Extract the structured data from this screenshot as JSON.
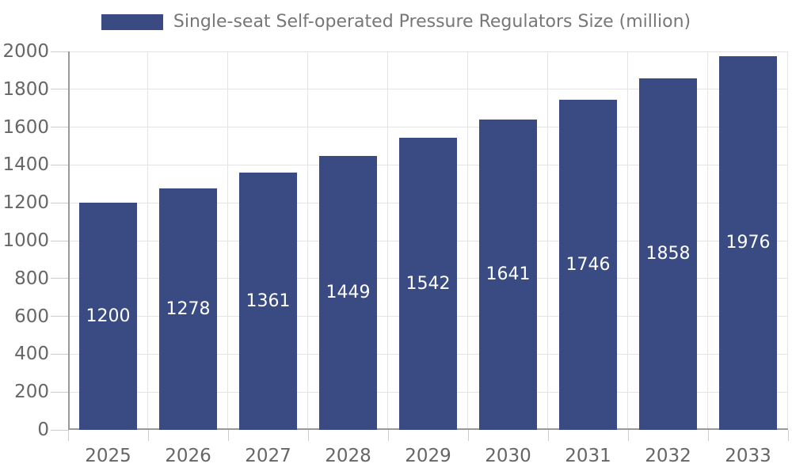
{
  "legend": {
    "label": "Single-seat Self-operated Pressure Regulators Size (million)"
  },
  "chart_data": {
    "type": "bar",
    "title": "Single-seat Self-operated Pressure Regulators Size (million)",
    "categories": [
      "2025",
      "2026",
      "2027",
      "2028",
      "2029",
      "2030",
      "2031",
      "2032",
      "2033"
    ],
    "values": [
      1200,
      1278,
      1361,
      1449,
      1542,
      1641,
      1746,
      1858,
      1976
    ],
    "xlabel": "",
    "ylabel": "",
    "ylim": [
      0,
      2000
    ],
    "ytick_step": 200,
    "grid": true,
    "legend_position": "top",
    "value_labels": "centered-inside-bars"
  },
  "colors": {
    "bar": "#394B82",
    "bar_value_text": "#ffffff",
    "axis_line": "#999999",
    "tick": "#cccccc",
    "gridline": "#e4e4e4",
    "axis_label_text": "#666666",
    "legend_text": "#777777",
    "background": "#ffffff"
  }
}
